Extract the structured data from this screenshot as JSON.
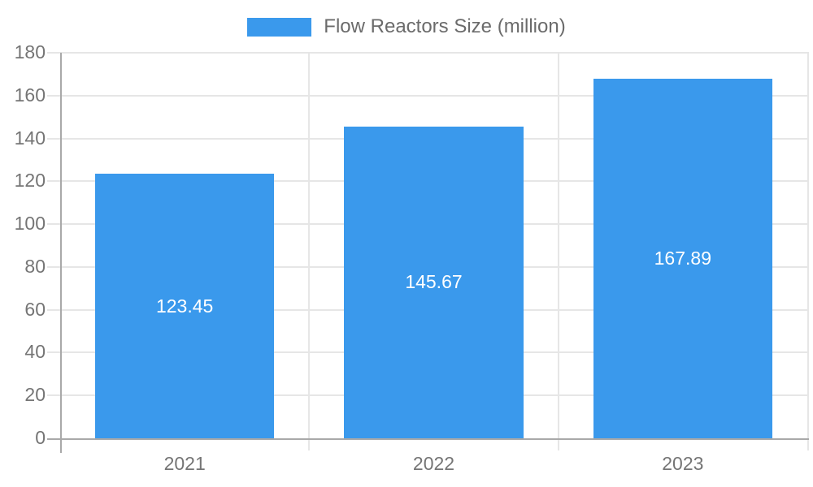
{
  "chart_data": {
    "type": "bar",
    "title": "Flow Reactors Size (million)",
    "categories": [
      "2021",
      "2022",
      "2023"
    ],
    "values": [
      123.45,
      145.67,
      167.89
    ],
    "bar_labels": [
      "123.45",
      "145.67",
      "167.89"
    ],
    "xlabel": "",
    "ylabel": "",
    "ylim": [
      0,
      180
    ],
    "ytick_step": 20,
    "ytick_labels": [
      "0",
      "20",
      "40",
      "60",
      "80",
      "100",
      "120",
      "140",
      "160",
      "180"
    ],
    "grid": true,
    "legend_position": "top-center",
    "bar_width_fraction": 0.72,
    "colors": {
      "bar": "#3a99ec",
      "grid": "#e6e6e6",
      "axis": "#a9a9a9",
      "tick_text": "#757575",
      "legend_text": "#6b6b6b",
      "bar_label_text": "#ffffff",
      "background": "#ffffff"
    }
  }
}
